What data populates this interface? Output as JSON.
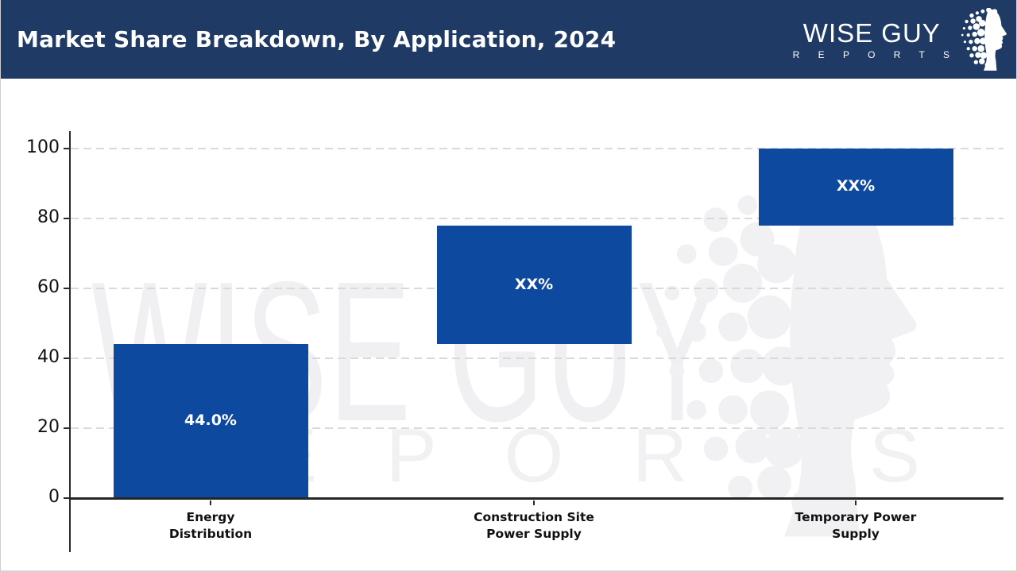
{
  "header": {
    "title": "Market Share Breakdown, By Application, 2024",
    "logo": {
      "wordmark": "WISE GUY",
      "subtext": "R E P O R T S"
    }
  },
  "watermark": {
    "wordmark": "WISE GUY",
    "subtext": "R E P O R T S"
  },
  "colors": {
    "header_bg": "#1f3a64",
    "bar": "#0d4a9f",
    "bar_label": "#ffffff",
    "grid": "#d9d9d9",
    "axis": "#2a2a2a",
    "tick_text": "#111111",
    "watermark": "#f0f0f3"
  },
  "chart_data": {
    "type": "bar",
    "subtype": "waterfall (floating cumulative segments)",
    "title": "Market Share Breakdown, By Application, 2024",
    "categories": [
      [
        "Energy",
        "Distribution"
      ],
      [
        "Construction Site",
        "Power Supply"
      ],
      [
        "Temporary Power",
        "Supply"
      ]
    ],
    "series": [
      {
        "name": "Market share (%)",
        "segments": [
          {
            "category": "Energy Distribution",
            "start": 0,
            "end": 44,
            "label": "44.0%"
          },
          {
            "category": "Construction Site Power Supply",
            "start": 44,
            "end": 78,
            "label": "XX%"
          },
          {
            "category": "Temporary Power Supply",
            "start": 78,
            "end": 100,
            "label": "XX%"
          }
        ]
      }
    ],
    "xlabel": "",
    "ylabel": "",
    "yticks": [
      0,
      20,
      40,
      60,
      80,
      100
    ],
    "ylim": [
      0,
      105
    ],
    "grid": "horizontal dashed",
    "legend": "none"
  }
}
